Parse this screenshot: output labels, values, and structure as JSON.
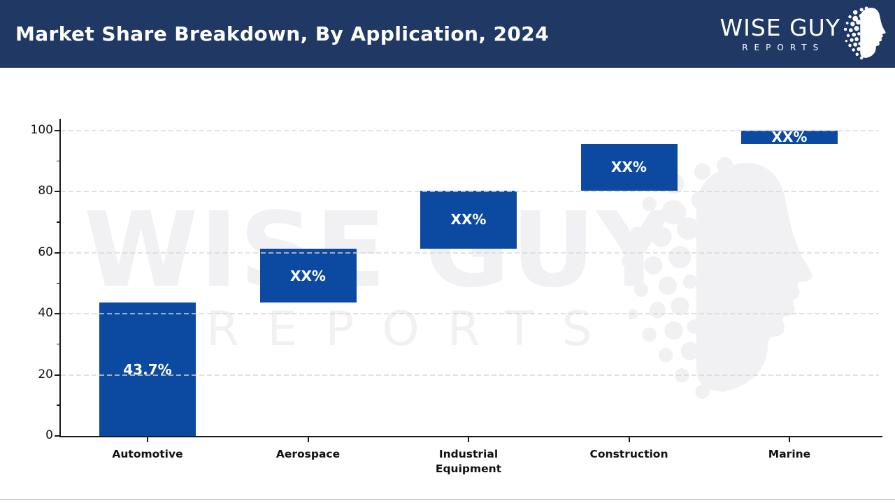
{
  "header": {
    "title": "Market Share Breakdown, By Application, 2024",
    "logo": {
      "line1": "WISE GUY",
      "line2": "REPORTS"
    }
  },
  "watermark": {
    "line1": "WISE GUY",
    "line2": "REPORTS"
  },
  "chart_data": {
    "type": "bar",
    "subtype": "waterfall",
    "title": "Market Share Breakdown, By Application, 2024",
    "categories": [
      "Automotive",
      "Aerospace",
      "Industrial\nEquipment",
      "Construction",
      "Marine"
    ],
    "segments": [
      {
        "category": "Automotive",
        "start": 0,
        "end": 43.7,
        "label": "43.7%"
      },
      {
        "category": "Aerospace",
        "start": 43.7,
        "end": 61.3,
        "label": "XX%"
      },
      {
        "category": "Industrial Equipment",
        "start": 61.3,
        "end": 80.4,
        "label": "XX%"
      },
      {
        "category": "Construction",
        "start": 80.4,
        "end": 95.7,
        "label": "XX%"
      },
      {
        "category": "Marine",
        "start": 95.7,
        "end": 100.0,
        "label": "XX%"
      }
    ],
    "ylim": [
      0,
      100
    ],
    "yticks": [
      0,
      20,
      40,
      60,
      80,
      100
    ],
    "minor_yticks": [
      10,
      30,
      50,
      70,
      90
    ],
    "xlabel": "",
    "ylabel": "",
    "grid": "horizontal-dashed",
    "legend": "none",
    "colors": {
      "bar": "#0b4aa0",
      "bar_label": "#ffffff",
      "header_bg": "#1f3864",
      "axis": "#1a1a1a",
      "grid": "#d9d9d9",
      "watermark": "#f1f1f3"
    }
  }
}
